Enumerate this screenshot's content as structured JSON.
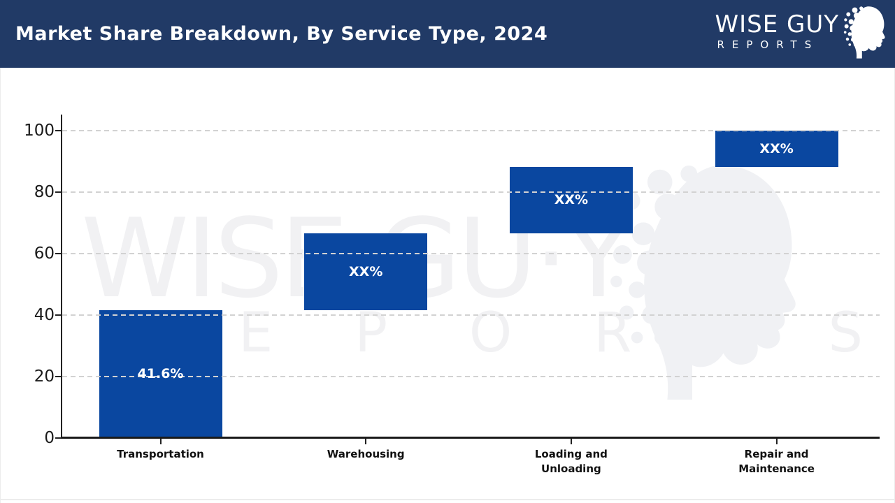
{
  "header": {
    "title": "Market Share Breakdown, By Service Type, 2024",
    "background": "#213a66",
    "text_color": "#ffffff",
    "logo": {
      "line1": "WISE GUY",
      "line2": "REPORTS",
      "head_icon": "head-profile-dots-icon"
    }
  },
  "watermark": {
    "line1": "WISE GU·Y",
    "line2": "R E P O R T S",
    "head_icon": "head-profile-dots-icon",
    "color": "#f1f1f3"
  },
  "chart_data": {
    "type": "bar",
    "subtype": "waterfall",
    "title": "Market Share Breakdown, By Service Type, 2024",
    "xlabel": "",
    "ylabel": "",
    "categories": [
      "Transportation",
      "Warehousing",
      "Loading and Unloading",
      "Repair and Maintenance"
    ],
    "segments": [
      {
        "category": "Transportation",
        "start": 0,
        "end": 41.6,
        "label": "41.6%"
      },
      {
        "category": "Warehousing",
        "start": 41.6,
        "end": 66.6,
        "label": "XX%"
      },
      {
        "category": "Loading and Unloading",
        "start": 66.6,
        "end": 88.0,
        "label": "XX%"
      },
      {
        "category": "Repair and Maintenance",
        "start": 88.0,
        "end": 100.0,
        "label": "XX%"
      }
    ],
    "yticks": [
      0,
      20,
      40,
      60,
      80,
      100
    ],
    "ylim": [
      0,
      100
    ],
    "grid": "horizontal dashed, drawn over bars",
    "legend": "none",
    "bar_color": "#0a47a0",
    "label_color": "#ffffff",
    "gridline_color": "#d2d2d2",
    "axis_color": "#1a1a1a"
  }
}
